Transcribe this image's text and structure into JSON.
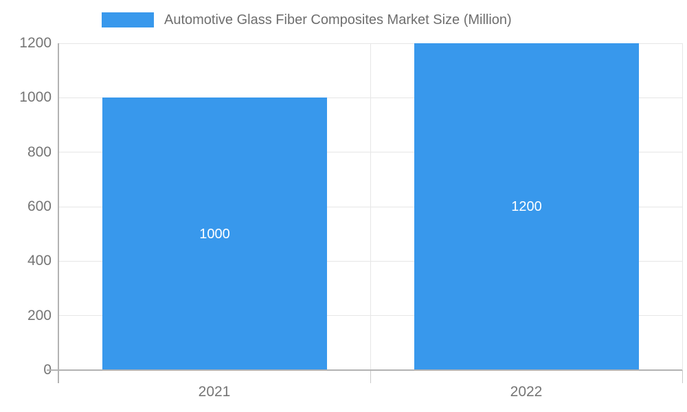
{
  "legend": {
    "label": "Automotive Glass Fiber Composites Market Size (Million)"
  },
  "chart_data": {
    "type": "bar",
    "title": "Automotive Glass Fiber Composites Market Size (Million)",
    "categories": [
      "2021",
      "2022"
    ],
    "values": [
      1000,
      1200
    ],
    "bar_value_labels": [
      "1000",
      "1200"
    ],
    "xlabel": "",
    "ylabel": "",
    "ylim": [
      0,
      1200
    ],
    "yticks": [
      0,
      200,
      400,
      600,
      800,
      1000,
      1200
    ],
    "grid": true,
    "legend_position": "top-left",
    "bar_color": "#3898ec",
    "bar_label_color": "#ffffff",
    "axis_text_color": "#757575",
    "gridline_color": "#e6e6e6",
    "axis_line_color": "#b2b2b2"
  }
}
